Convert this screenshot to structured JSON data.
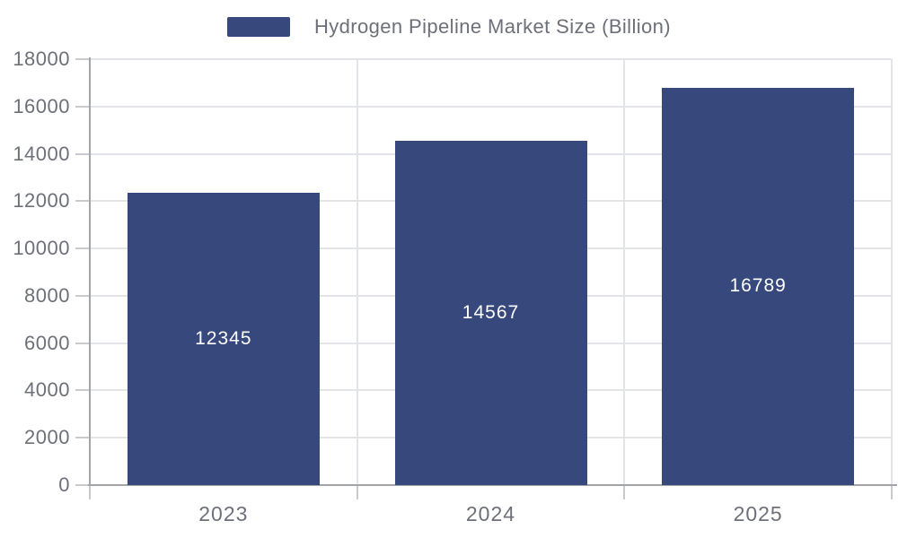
{
  "chart_data": {
    "type": "bar",
    "title": "Hydrogen Pipeline Market Size (Billion)",
    "categories": [
      "2023",
      "2024",
      "2025"
    ],
    "values": [
      12345,
      14567,
      16789
    ],
    "bar_value_labels": [
      "12345",
      "14567",
      "16789"
    ],
    "bar_value_label_position": "inside-center",
    "xlabel": "",
    "ylabel": "",
    "ylim": [
      0,
      18000
    ],
    "ytick_step": 2000,
    "ytick_labels": [
      "0",
      "2000",
      "4000",
      "6000",
      "8000",
      "10000",
      "12000",
      "14000",
      "16000",
      "18000"
    ],
    "grid": true,
    "legend_position": "top-center",
    "legend_label": "Hydrogen Pipeline Market Size (Billion)",
    "colors": {
      "bar": "#37487c",
      "bar_label_text": "#ffffff",
      "legend_text": "#6e7079",
      "axis_label_text": "#6e7079",
      "grid_line": "#e3e4e8",
      "axis_line": "#a3a4a8",
      "tick": "#c9cacd",
      "background": "#ffffff"
    }
  }
}
